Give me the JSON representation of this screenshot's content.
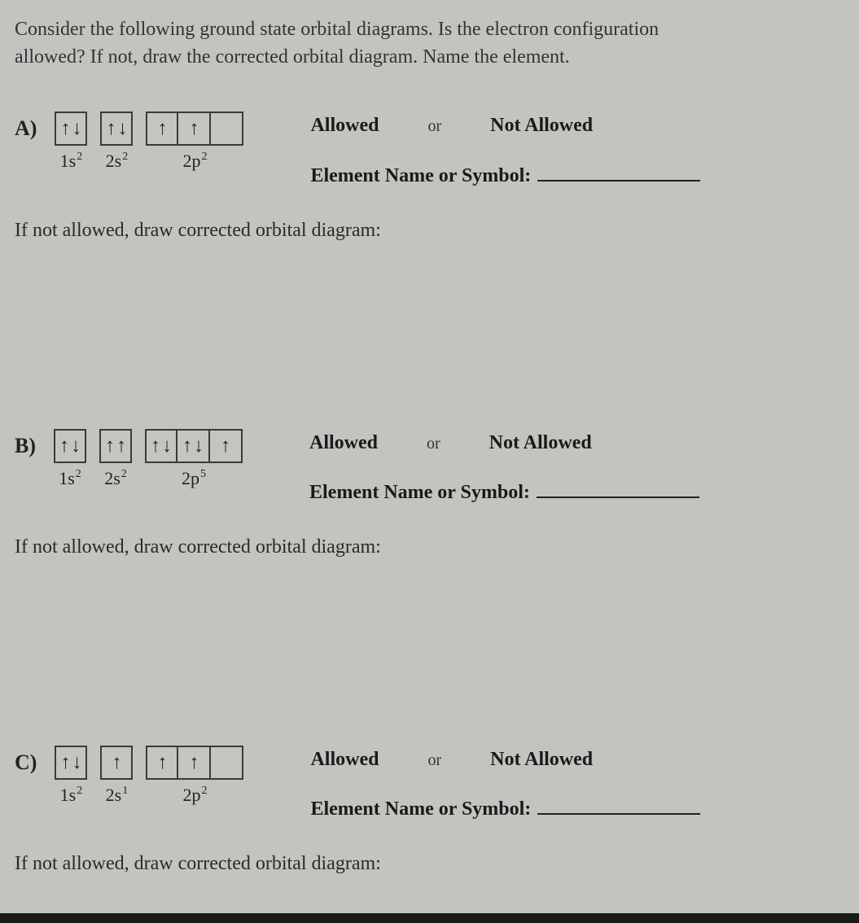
{
  "intro_line1": "Consider the following ground state orbital diagrams. Is the electron configuration",
  "intro_line2": "allowed? If not, draw the corrected orbital diagram. Name the element.",
  "choice_allowed": "Allowed",
  "choice_or": "or",
  "choice_not": "Not Allowed",
  "elem_prompt": "Element Name or Symbol:",
  "correction_prompt": "If not allowed, draw corrected orbital diagram:",
  "glyph_up": "↑",
  "glyph_down": "↓",
  "problems": {
    "A": {
      "letter": "A)",
      "groups": [
        {
          "label_base": "1s",
          "label_sup": "2",
          "boxes": [
            [
              "up",
              "down"
            ]
          ]
        },
        {
          "label_base": "2s",
          "label_sup": "2",
          "boxes": [
            [
              "up",
              "down"
            ]
          ]
        },
        {
          "label_base": "2p",
          "label_sup": "2",
          "boxes": [
            [
              "up"
            ],
            [
              "up"
            ],
            []
          ]
        }
      ]
    },
    "B": {
      "letter": "B)",
      "groups": [
        {
          "label_base": "1s",
          "label_sup": "2",
          "boxes": [
            [
              "up",
              "down"
            ]
          ]
        },
        {
          "label_base": "2s",
          "label_sup": "2",
          "boxes": [
            [
              "up",
              "up"
            ]
          ]
        },
        {
          "label_base": "2p",
          "label_sup": "5",
          "boxes": [
            [
              "up",
              "down"
            ],
            [
              "up",
              "down"
            ],
            [
              "up"
            ]
          ]
        }
      ]
    },
    "C": {
      "letter": "C)",
      "groups": [
        {
          "label_base": "1s",
          "label_sup": "2",
          "boxes": [
            [
              "up",
              "down"
            ]
          ]
        },
        {
          "label_base": "2s",
          "label_sup": "1",
          "boxes": [
            [
              "up"
            ]
          ]
        },
        {
          "label_base": "2p",
          "label_sup": "2",
          "boxes": [
            [
              "up"
            ],
            [
              "up"
            ],
            []
          ]
        }
      ]
    }
  }
}
